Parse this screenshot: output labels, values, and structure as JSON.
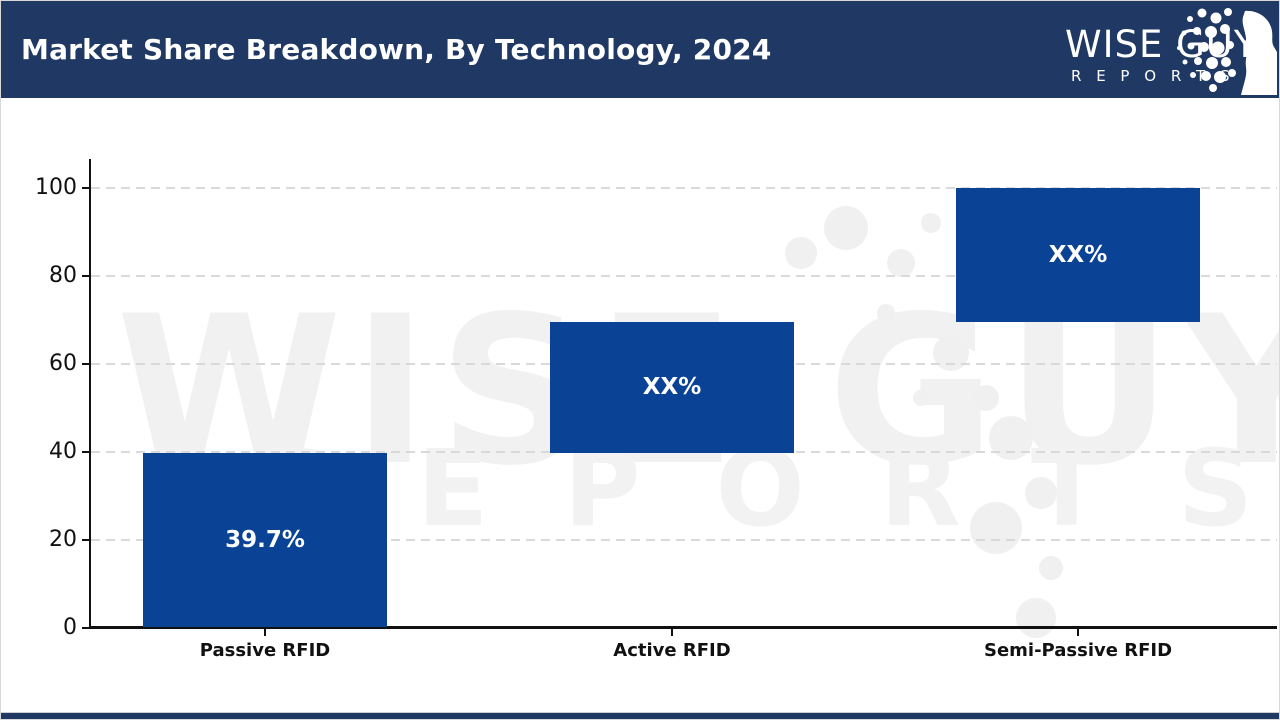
{
  "header": {
    "title": "Market Share Breakdown, By Technology, 2024",
    "logo": {
      "line1": "WISE GUY",
      "line2": "R E P O R T S"
    }
  },
  "watermark": {
    "line1": "WISE GUY",
    "line2": "REPORTS"
  },
  "chart_data": {
    "type": "bar",
    "subtype": "floating-breakdown-columns",
    "title": "Market Share Breakdown, By Technology, 2024",
    "xlabel": "",
    "ylabel": "",
    "categories": [
      "Passive RFID",
      "Active RFID",
      "Semi-Passive RFID"
    ],
    "segments": [
      {
        "category": "Passive RFID",
        "start": 0,
        "end": 39.7,
        "label": "39.7%"
      },
      {
        "category": "Active RFID",
        "start": 39.7,
        "end": 69.5,
        "label": "XX%"
      },
      {
        "category": "Semi-Passive RFID",
        "start": 69.5,
        "end": 100,
        "label": "XX%"
      }
    ],
    "yticks": [
      0,
      20,
      40,
      60,
      80,
      100
    ],
    "ylim": [
      0,
      105
    ],
    "grid": "horizontal-dashed",
    "legend": "none",
    "bar_color": "#0a4295",
    "bar_label_color": "#ffffff"
  },
  "colors": {
    "header_navy": "#1f3864",
    "bar_blue": "#0a4295",
    "gridline_gray": "#d9d9d9",
    "axis_black": "#111111",
    "watermark_gray": "#f1f1f1"
  }
}
